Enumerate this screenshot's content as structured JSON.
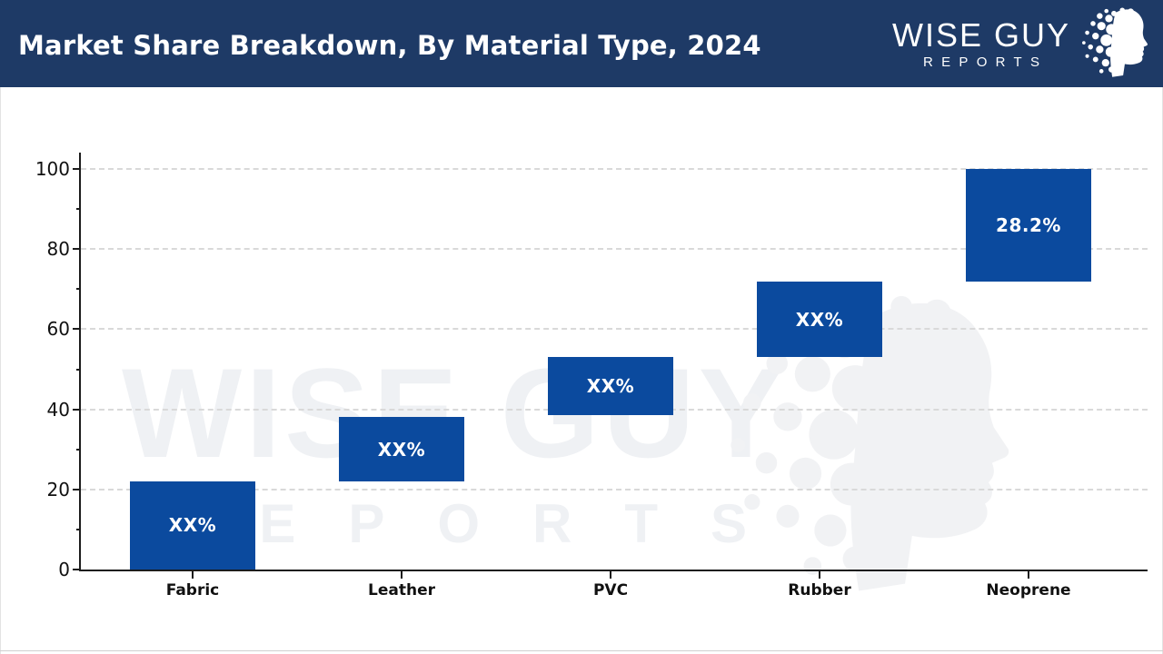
{
  "header": {
    "title": "Market Share Breakdown, By Material Type, 2024",
    "logo": {
      "line1": "WISE GUY",
      "line2": "REPORTS"
    }
  },
  "watermark": {
    "line1": "WISE GUY",
    "line2": "REPORTS"
  },
  "colors": {
    "header_bg": "#1e3a66",
    "bar_blue": "#0b4a9e",
    "grid_gray": "#d9d9d9",
    "axis_black": "#1c1c1c",
    "label_white": "#ffffff",
    "watermark_gray": "#eff1f4"
  },
  "chart_data": {
    "type": "bar",
    "variant": "waterfall",
    "title": "Market Share Breakdown, By Material Type, 2024",
    "xlabel": "",
    "ylabel": "",
    "ylim": [
      0,
      100
    ],
    "yticks": [
      0,
      20,
      40,
      60,
      80,
      100
    ],
    "grid": "horizontal-dashed",
    "legend": "none",
    "categories": [
      "Fabric",
      "Leather",
      "PVC",
      "Rubber",
      "Neoprene"
    ],
    "bar_color": "#0b4a9e",
    "label_color": "#ffffff",
    "bars": [
      {
        "category": "Fabric",
        "start": 0,
        "end": 22,
        "value_shown": "XX%",
        "label": "XX%"
      },
      {
        "category": "Leather",
        "start": 22,
        "end": 38,
        "value_shown": "XX%",
        "label": "XX%"
      },
      {
        "category": "PVC",
        "start": 38.5,
        "end": 53,
        "value_shown": "XX%",
        "label": "XX%"
      },
      {
        "category": "Rubber",
        "start": 53,
        "end": 71.8,
        "value_shown": "XX%",
        "label": "XX%"
      },
      {
        "category": "Neoprene",
        "start": 71.8,
        "end": 100,
        "value_shown": "28.2%",
        "label": "28.2%"
      }
    ]
  }
}
